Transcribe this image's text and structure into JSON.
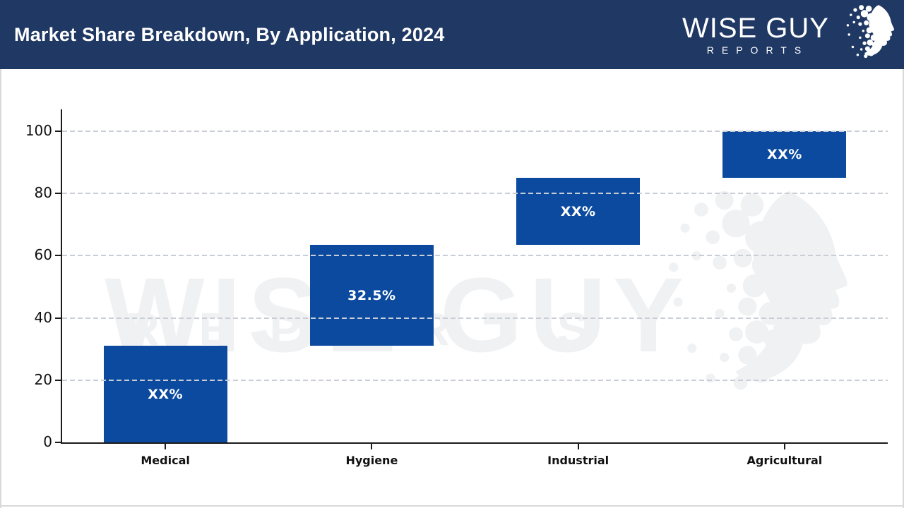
{
  "header": {
    "title": "Market Share Breakdown, By Application, 2024",
    "logo": {
      "line1": "WISE GUY",
      "line2": "REPORTS"
    },
    "bg_color": "#1f3864"
  },
  "watermark": {
    "line1": "WISE GUY",
    "line2": "REPORTS"
  },
  "chart_data": {
    "type": "bar",
    "subtype": "waterfall",
    "title": "Market Share Breakdown, By Application, 2024",
    "categories": [
      "Medical",
      "Hygiene",
      "Industrial",
      "Agricultural"
    ],
    "series": [
      {
        "name": "Market Share",
        "segments": [
          {
            "category": "Medical",
            "start": 0,
            "end": 31,
            "label": "XX%"
          },
          {
            "category": "Hygiene",
            "start": 31,
            "end": 63.5,
            "label": "32.5%"
          },
          {
            "category": "Industrial",
            "start": 63.5,
            "end": 85,
            "label": "XX%"
          },
          {
            "category": "Agricultural",
            "start": 85,
            "end": 100,
            "label": "XX%"
          }
        ]
      }
    ],
    "ylim": [
      0,
      100
    ],
    "yticks": [
      0,
      20,
      40,
      60,
      80,
      100
    ],
    "grid": "horizontal dashed, drawn over bars",
    "legend": "none",
    "bar_color": "#0b4a9e",
    "bar_label_color": "#ffffff",
    "axis_color": "#1a1a1a"
  }
}
